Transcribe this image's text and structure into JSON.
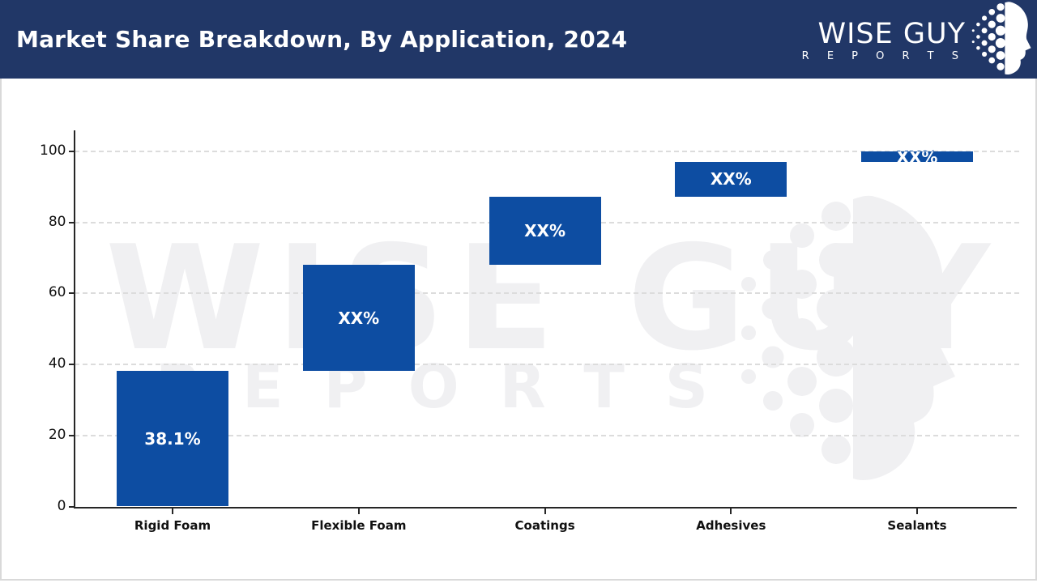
{
  "header": {
    "title": "Market Share Breakdown, By Application, 2024",
    "logo": {
      "line1": "WISE GUY",
      "line2": "R E P O R T S"
    }
  },
  "watermark": {
    "line1": "WISE GUY",
    "line2": "REPORTS"
  },
  "colors": {
    "header_bg": "#213767",
    "bar": "#0d4da2",
    "grid": "#dcdcdc",
    "axis": "#262626",
    "bar_label": "#ffffff",
    "watermark": "#f0f0f2"
  },
  "chart_data": {
    "type": "bar",
    "subtype": "waterfall",
    "title": "Market Share Breakdown, By Application, 2024",
    "categories": [
      "Rigid Foam",
      "Flexible Foam",
      "Coatings",
      "Adhesives",
      "Sealants"
    ],
    "segments": [
      {
        "category": "Rigid Foam",
        "start": 0,
        "end": 38.1,
        "size": 38.1,
        "label": "38.1%"
      },
      {
        "category": "Flexible Foam",
        "start": 38.1,
        "end": 68.0,
        "size": 29.9,
        "label": "XX%"
      },
      {
        "category": "Coatings",
        "start": 68.0,
        "end": 87.3,
        "size": 19.3,
        "label": "XX%"
      },
      {
        "category": "Adhesives",
        "start": 87.3,
        "end": 97.0,
        "size": 9.7,
        "label": "XX%",
        "label_outside_tint": false
      },
      {
        "category": "Sealants",
        "start": 97.0,
        "end": 100.0,
        "size": 3.0,
        "label": "XX%",
        "split_label": true
      }
    ],
    "yticks": [
      0,
      20,
      40,
      60,
      80,
      100
    ],
    "ylim": [
      0,
      105
    ],
    "xlabel": "",
    "ylabel": "",
    "grid": "horizontal-dashed",
    "legend": "none"
  }
}
